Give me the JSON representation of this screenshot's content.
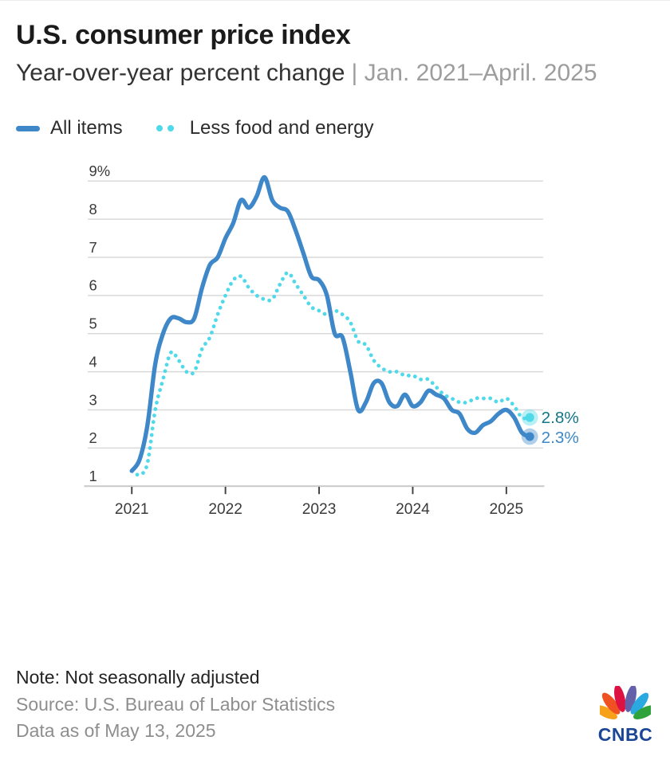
{
  "header": {
    "title": "U.S. consumer price index",
    "subtitle_main": "Year-over-year percent change",
    "subtitle_range": "| Jan. 2021–April. 2025"
  },
  "legend": {
    "all_items": "All items",
    "core": "Less food and energy"
  },
  "chart_data": {
    "type": "line",
    "title": "U.S. consumer price index",
    "ylabel": "Year-over-year percent change (%)",
    "x_start": "2021-01",
    "x_end": "2025-04",
    "x_frequency": "monthly",
    "x_ticks": [
      "2021",
      "2022",
      "2023",
      "2024",
      "2025"
    ],
    "y_ticks": [
      1,
      2,
      3,
      4,
      5,
      6,
      7,
      8,
      9
    ],
    "y_tick_labels": [
      "1",
      "2",
      "3",
      "4",
      "5",
      "6",
      "7",
      "8",
      "9%"
    ],
    "ylim": [
      1,
      9
    ],
    "grid": "horizontal",
    "legend_position": "top-left",
    "colors": {
      "gridline": "#d9d9d9",
      "axis_baseline": "#c9c9c9",
      "tick": "#3f3f3f",
      "axis_label": "#3a3a3a"
    },
    "series": [
      {
        "name": "All items",
        "style": "solid",
        "color": "#3e87c8",
        "end_label": "2.3%",
        "end_label_color": "#3e87c8",
        "values": [
          1.4,
          1.7,
          2.6,
          4.2,
          5.0,
          5.4,
          5.4,
          5.3,
          5.4,
          6.2,
          6.8,
          7.0,
          7.5,
          7.9,
          8.5,
          8.3,
          8.6,
          9.1,
          8.5,
          8.3,
          8.2,
          7.7,
          7.1,
          6.5,
          6.4,
          6.0,
          5.0,
          4.9,
          4.0,
          3.0,
          3.2,
          3.7,
          3.7,
          3.2,
          3.1,
          3.4,
          3.1,
          3.2,
          3.5,
          3.4,
          3.3,
          3.0,
          2.9,
          2.5,
          2.4,
          2.6,
          2.7,
          2.9,
          3.0,
          2.8,
          2.4,
          2.3
        ]
      },
      {
        "name": "Less food and energy",
        "style": "dotted",
        "color": "#4fd9e9",
        "end_label": "2.8%",
        "end_label_color": "#147687",
        "values": [
          1.4,
          1.3,
          1.6,
          3.0,
          3.8,
          4.5,
          4.3,
          4.0,
          4.0,
          4.6,
          4.9,
          5.5,
          6.0,
          6.4,
          6.5,
          6.2,
          6.0,
          5.9,
          5.9,
          6.3,
          6.6,
          6.3,
          6.0,
          5.7,
          5.6,
          5.5,
          5.6,
          5.5,
          5.3,
          4.8,
          4.7,
          4.3,
          4.1,
          4.0,
          4.0,
          3.9,
          3.9,
          3.8,
          3.8,
          3.6,
          3.4,
          3.3,
          3.2,
          3.2,
          3.3,
          3.3,
          3.3,
          3.2,
          3.3,
          3.1,
          2.8,
          2.8
        ]
      }
    ]
  },
  "footer": {
    "note": "Note: Not seasonally adjusted",
    "source": "Source: U.S. Bureau of Labor Statistics",
    "data_as_of": "Data as of May 13, 2025"
  },
  "logo": {
    "wordmark": "CNBC",
    "wordmark_color": "#1b4596",
    "feather_colors": [
      "#f7a01a",
      "#f05123",
      "#dd1243",
      "#6460aa",
      "#2aa8e0",
      "#2fa23c"
    ]
  }
}
